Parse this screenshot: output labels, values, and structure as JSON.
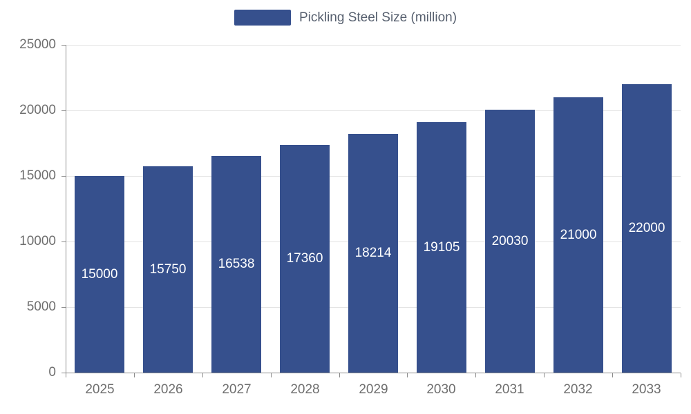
{
  "chart_data": {
    "type": "bar",
    "title": "Pickling Steel Size (million)",
    "categories": [
      "2025",
      "2026",
      "2027",
      "2028",
      "2029",
      "2030",
      "2031",
      "2032",
      "2033"
    ],
    "values": [
      15000,
      15750,
      16538,
      17360,
      18214,
      19105,
      20030,
      21000,
      22000
    ],
    "value_labels": [
      "15000",
      "15750",
      "16538",
      "17360",
      "18214",
      "19105",
      "20030",
      "21000",
      "22000"
    ],
    "xlabel": "",
    "ylabel": "",
    "ylim": [
      0,
      25000
    ],
    "yticks": [
      0,
      5000,
      10000,
      15000,
      20000,
      25000
    ],
    "ytick_labels": [
      "0",
      "5000",
      "10000",
      "15000",
      "20000",
      "25000"
    ],
    "grid": true,
    "legend_position": "top-center",
    "colors": {
      "bar": "#36508D",
      "bar_value_text": "#ffffff",
      "grid_line": "#e3e3e3",
      "axis_line": "#8a8a8a",
      "tick_text": "#6e6e6e",
      "legend_text": "#565f6e",
      "background": "#ffffff"
    }
  }
}
